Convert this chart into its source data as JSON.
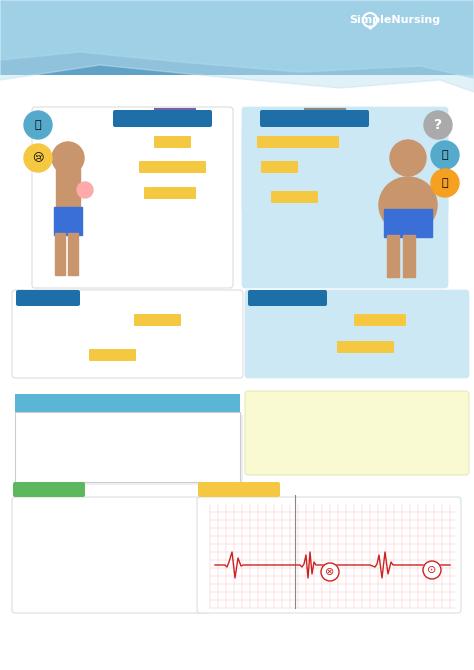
{
  "bg_color": "#ffffff",
  "header_dark_blue": "#1a7aad",
  "header_light_blue": "#5bb5d5",
  "light_blue_box": "#cce8f4",
  "yellow_bar": "#f5c842",
  "yellow_light_box": "#fafad2",
  "green_bar": "#5cb85c",
  "teal_bar": "#2a8fa8",
  "dark_blue_bar": "#1e6fa8",
  "pink_ecg": "#f5b8b8",
  "title_purple": "#7b5ea7",
  "title_gray": "#888888",
  "figure_size": [
    4.74,
    6.7
  ],
  "dpi": 100
}
